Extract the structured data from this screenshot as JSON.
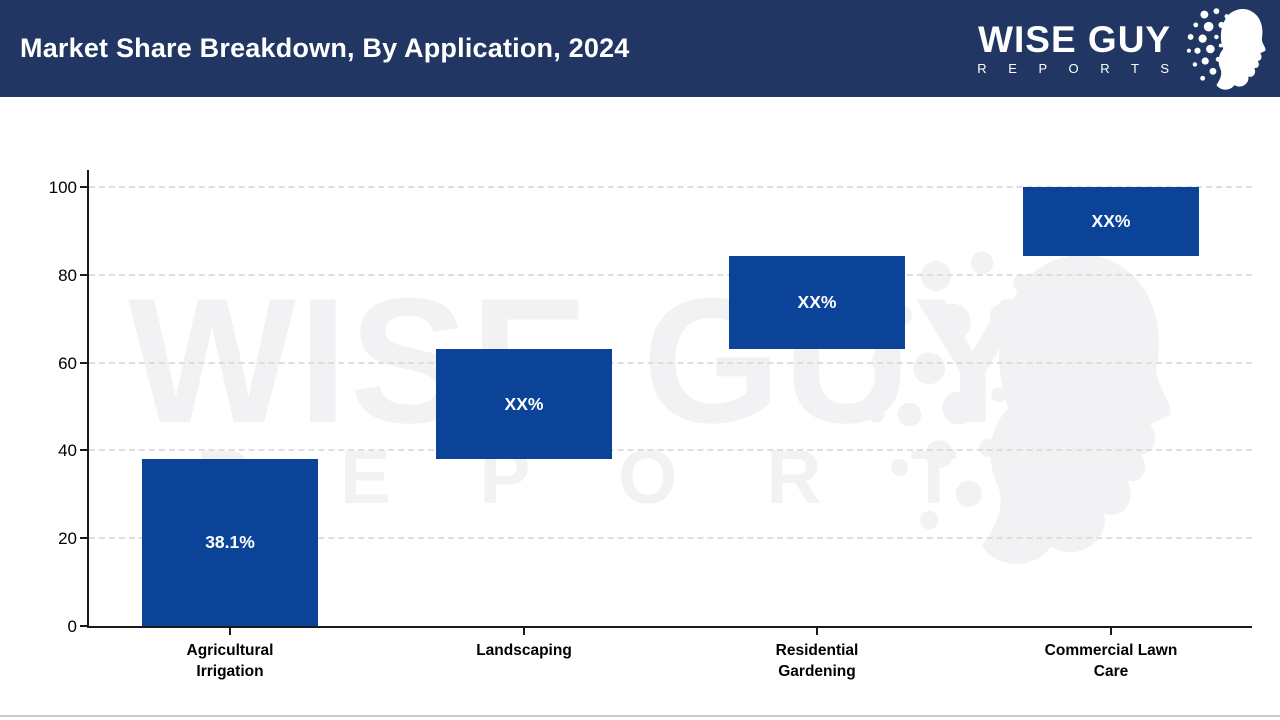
{
  "header": {
    "title": "Market Share Breakdown, By Application, 2024",
    "logo": {
      "line1": "WISE GUY",
      "line2": "R E P O R T S",
      "icon": "dot-head-face-icon"
    }
  },
  "watermark": {
    "line1": "WISE GUY",
    "line2": "R E P O R T S",
    "icon": "dot-head-face-icon"
  },
  "colors": {
    "header_bg": "#213663",
    "bar": "#0b4399",
    "bar_label_text": "#ffffff",
    "axis": "#1a1a1a",
    "gridline": "#dedede",
    "watermark": "#f2f2f4"
  },
  "chart_data": {
    "type": "bar",
    "subtype": "floating-waterfall",
    "title": "Market Share Breakdown, By Application, 2024",
    "categories": [
      "Agricultural Irrigation",
      "Landscaping",
      "Residential Gardening",
      "Commercial Lawn Care"
    ],
    "categories_wrapped": [
      [
        "Agricultural",
        "Irrigation"
      ],
      [
        "Landscaping"
      ],
      [
        "Residential",
        "Gardening"
      ],
      [
        "Commercial Lawn",
        "Care"
      ]
    ],
    "series": [
      {
        "name": "Market Share %",
        "segments": [
          {
            "category": "Agricultural Irrigation",
            "base": 0,
            "top": 38.1,
            "label": "38.1%"
          },
          {
            "category": "Landscaping",
            "base": 38.1,
            "top": 63,
            "label": "XX%"
          },
          {
            "category": "Residential Gardening",
            "base": 63,
            "top": 84.3,
            "label": "XX%"
          },
          {
            "category": "Commercial Lawn Care",
            "base": 84.3,
            "top": 100,
            "label": "XX%"
          }
        ]
      }
    ],
    "xlabel": "",
    "ylabel": "",
    "ylim": [
      0,
      100
    ],
    "yticks": [
      0,
      20,
      40,
      60,
      80,
      100
    ],
    "grid": "horizontal dashed",
    "legend": "none"
  }
}
